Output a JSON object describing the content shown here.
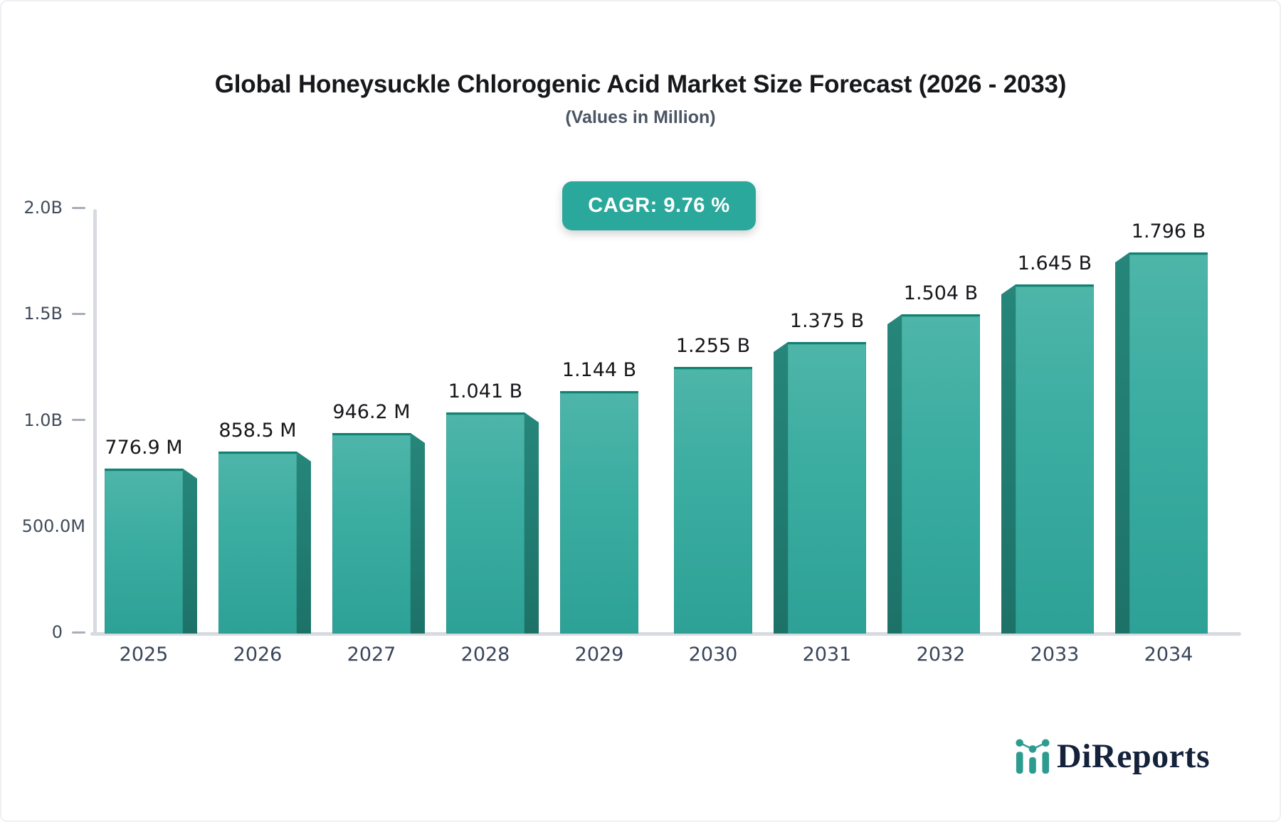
{
  "header": {
    "title": "Global Honeysuckle Chlorogenic Acid Market Size Forecast (2026 - 2033)",
    "subtitle": "(Values in Million)"
  },
  "badge": {
    "label": "CAGR: 9.76 %"
  },
  "chart_data": {
    "type": "bar",
    "title": "Global Honeysuckle Chlorogenic Acid Market Size Forecast (2026 - 2033)",
    "subtitle": "(Values in Million)",
    "categories": [
      "2025",
      "2026",
      "2027",
      "2028",
      "2029",
      "2030",
      "2031",
      "2032",
      "2033",
      "2034"
    ],
    "values_millions": [
      776.9,
      858.5,
      946.2,
      1041,
      1144,
      1255,
      1375,
      1504,
      1645,
      1796
    ],
    "value_labels": [
      "776.9 M",
      "858.5 M",
      "946.2 M",
      "1.041 B",
      "1.144 B",
      "1.255 B",
      "1.375 B",
      "1.504 B",
      "1.645 B",
      "1.796 B"
    ],
    "y_axis": {
      "ylim_millions": [
        0,
        2000
      ],
      "ticks": [
        {
          "label": "2.0B",
          "value_millions": 2000,
          "dash": true
        },
        {
          "label": "1.5B",
          "value_millions": 1500,
          "dash": true
        },
        {
          "label": "1.0B",
          "value_millions": 1000,
          "dash": true
        },
        {
          "label": "500.0M",
          "value_millions": 500,
          "dash": false
        },
        {
          "label": "0",
          "value_millions": 0,
          "dash": true
        }
      ]
    },
    "grid": "off",
    "legend": "none",
    "colors": {
      "bar_face_top": "#4eb5a9",
      "bar_face_bottom": "#2ea196",
      "bar_side": "#21796f",
      "bar_top_edge": "#0f8173",
      "badge_bg": "#2aa89b",
      "axis_line": "#d7dadf",
      "tick_text": "#414b5a",
      "value_text": "#16171a",
      "year_text": "#39455a",
      "logo_navy": "#15223b",
      "logo_teal": "#2d9c90"
    }
  },
  "logo": {
    "text": "DiReports",
    "icon": "bar-line-chart-icon"
  }
}
